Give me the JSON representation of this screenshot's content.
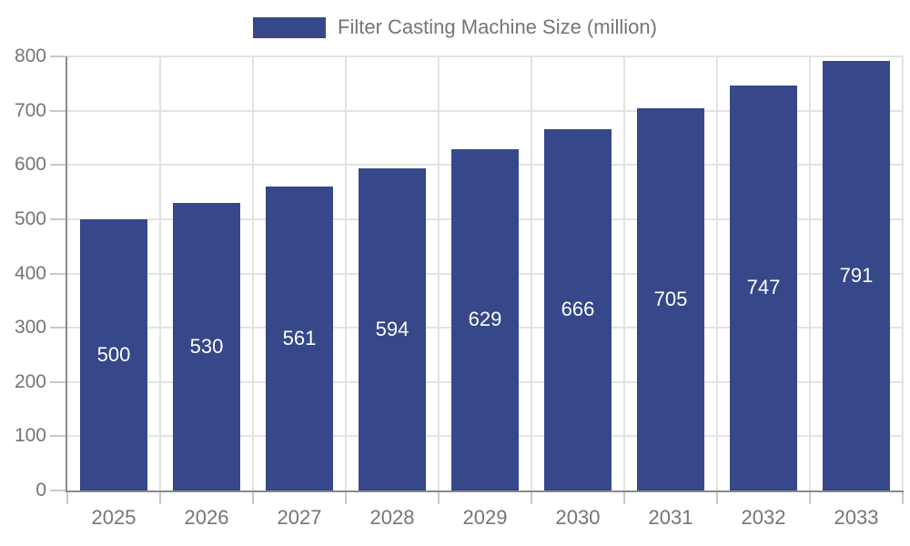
{
  "legend": {
    "label": "Filter Casting Machine Size (million)"
  },
  "colors": {
    "bar": "#36478A",
    "axis": "#8a8a8a",
    "grid": "#e3e3e3",
    "tick_mark": "#c8c8c8",
    "tick_label_text": "#757575",
    "value_label_text": "#ffffff",
    "legend_text": "#757575",
    "background": "#ffffff"
  },
  "chart_data": {
    "type": "bar",
    "title": "",
    "xlabel": "",
    "ylabel": "",
    "categories": [
      "2025",
      "2026",
      "2027",
      "2028",
      "2029",
      "2030",
      "2031",
      "2032",
      "2033"
    ],
    "series": [
      {
        "name": "Filter Casting Machine Size (million)",
        "values": [
          500,
          530,
          561,
          594,
          629,
          666,
          705,
          747,
          791
        ]
      }
    ],
    "ylim": [
      0,
      800
    ],
    "yticks": [
      0,
      100,
      200,
      300,
      400,
      500,
      600,
      700,
      800
    ],
    "grid": true,
    "legend_position": "top",
    "value_label_position": "inside-center"
  }
}
